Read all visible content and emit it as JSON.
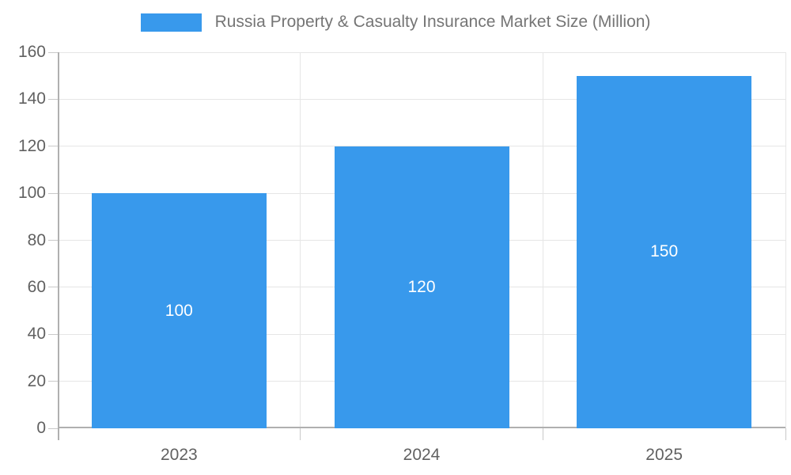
{
  "chart_data": {
    "type": "bar",
    "title": "Russia Property & Casualty Insurance Market Size (Million)",
    "legend": [
      {
        "label": "Russia Property & Casualty Insurance Market Size (Million)",
        "color": "#3899EC"
      }
    ],
    "legend_position": "top",
    "categories": [
      "2023",
      "2024",
      "2025"
    ],
    "values": [
      100,
      120,
      150
    ],
    "value_labels": [
      "100",
      "120",
      "150"
    ],
    "xlabel": "",
    "ylabel": "",
    "ylim": [
      0,
      160
    ],
    "yticks": [
      0,
      20,
      40,
      60,
      80,
      100,
      120,
      140,
      160
    ],
    "ytick_labels": [
      "0",
      "20",
      "40",
      "60",
      "80",
      "100",
      "120",
      "140",
      "160"
    ],
    "grid": true,
    "bar_color": "#3899EC",
    "value_label_color": "#FFFFFF",
    "axis_color": "#B0B0B0",
    "gridline_color": "#E6E6E6",
    "tick_label_color": "#616161",
    "title_color": "#757575"
  }
}
